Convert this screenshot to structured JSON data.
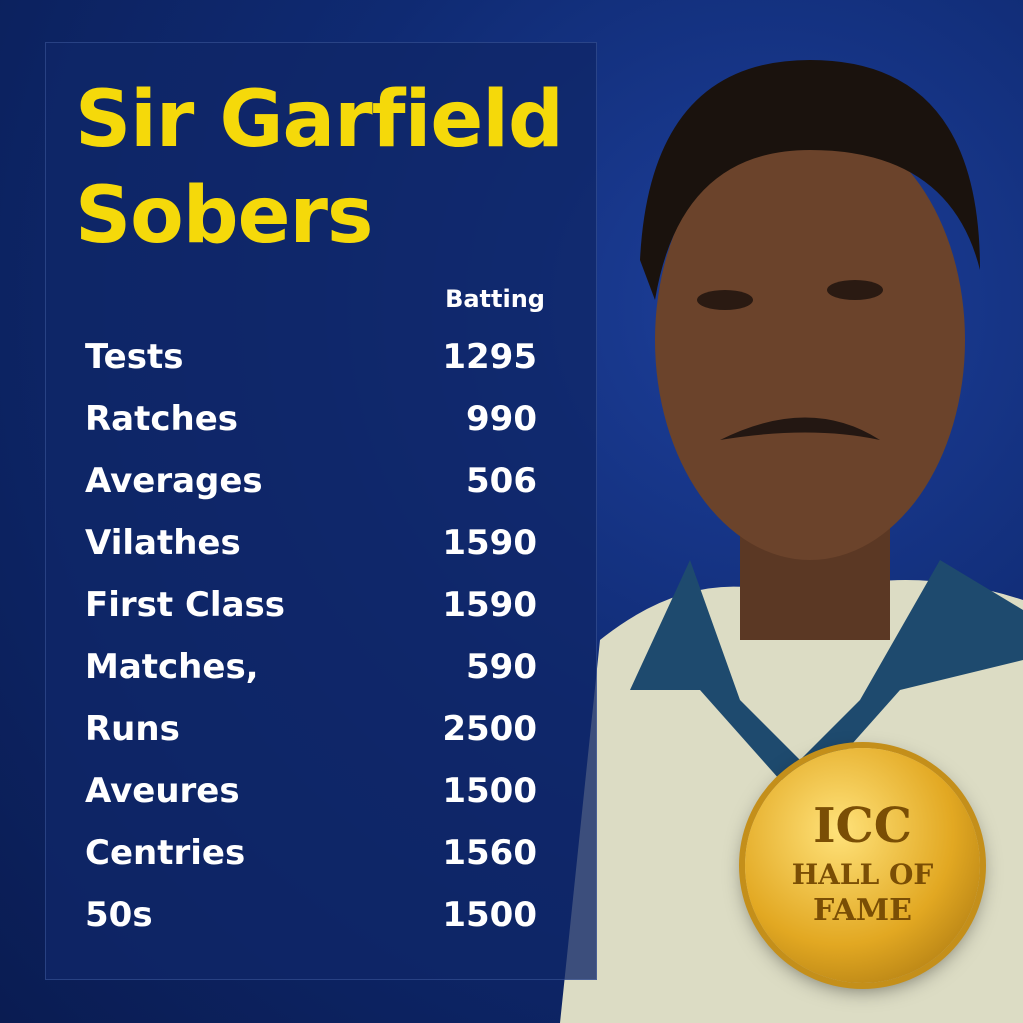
{
  "header": {
    "title": "Sir Garfield Sobers",
    "column": "Batting"
  },
  "table": {
    "rows": [
      [
        "Tests",
        1295
      ],
      [
        "Ratches",
        990
      ],
      [
        "Averages",
        506
      ],
      [
        "Vilathes",
        1590
      ],
      [
        "First Class",
        1590
      ],
      [
        "Matches,",
        590
      ],
      [
        "Runs",
        2500
      ],
      [
        "Aveures",
        1500
      ],
      [
        "Centries",
        1560
      ],
      [
        "50s",
        1500
      ]
    ]
  },
  "medal": {
    "lines": [
      "ICC",
      "HALL OF",
      "FAME"
    ]
  }
}
